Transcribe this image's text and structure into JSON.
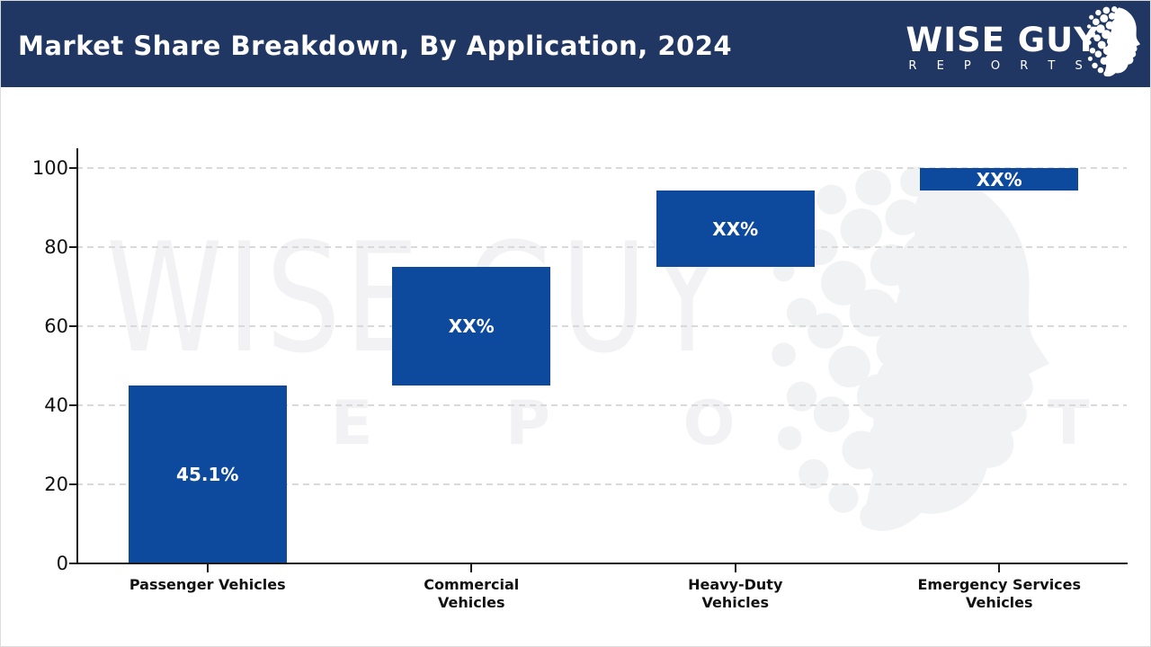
{
  "header": {
    "title": "Market Share Breakdown, By Application, 2024",
    "logo": {
      "line1": "WISE GUY",
      "line2": "R E P O R T S"
    }
  },
  "watermark": {
    "line1": "WISE GUY",
    "line2": "R E P O R T S"
  },
  "colors": {
    "header_bg": "#203764",
    "bar": "#0d4a9e",
    "bar_label": "#ffffff",
    "grid": "#d9d9d9",
    "axis": "#1a1a1a",
    "watermark": "#f2f2f4"
  },
  "chart_data": {
    "type": "bar",
    "subtype": "waterfall",
    "title": "Market Share Breakdown, By Application, 2024",
    "xlabel": "",
    "ylabel": "",
    "ylim": [
      0,
      105
    ],
    "yticks": [
      0,
      20,
      40,
      60,
      80,
      100
    ],
    "grid": true,
    "grid_style": "dashed",
    "legend": "none",
    "bar_color": "#0d4a9e",
    "categories": [
      "Passenger Vehicles",
      "Commercial Vehicles",
      "Heavy-Duty Vehicles",
      "Emergency Services Vehicles"
    ],
    "segments": [
      {
        "category_lines": [
          "Passenger Vehicles"
        ],
        "label": "45.1%",
        "start": 0,
        "end": 45.1
      },
      {
        "category_lines": [
          "Commercial",
          "Vehicles"
        ],
        "label": "XX%",
        "start": 45.1,
        "end": 75.0
      },
      {
        "category_lines": [
          "Heavy-Duty",
          "Vehicles"
        ],
        "label": "XX%",
        "start": 75.0,
        "end": 94.3
      },
      {
        "category_lines": [
          "Emergency Services",
          "Vehicles"
        ],
        "label": "XX%",
        "start": 94.3,
        "end": 100.0
      }
    ]
  }
}
